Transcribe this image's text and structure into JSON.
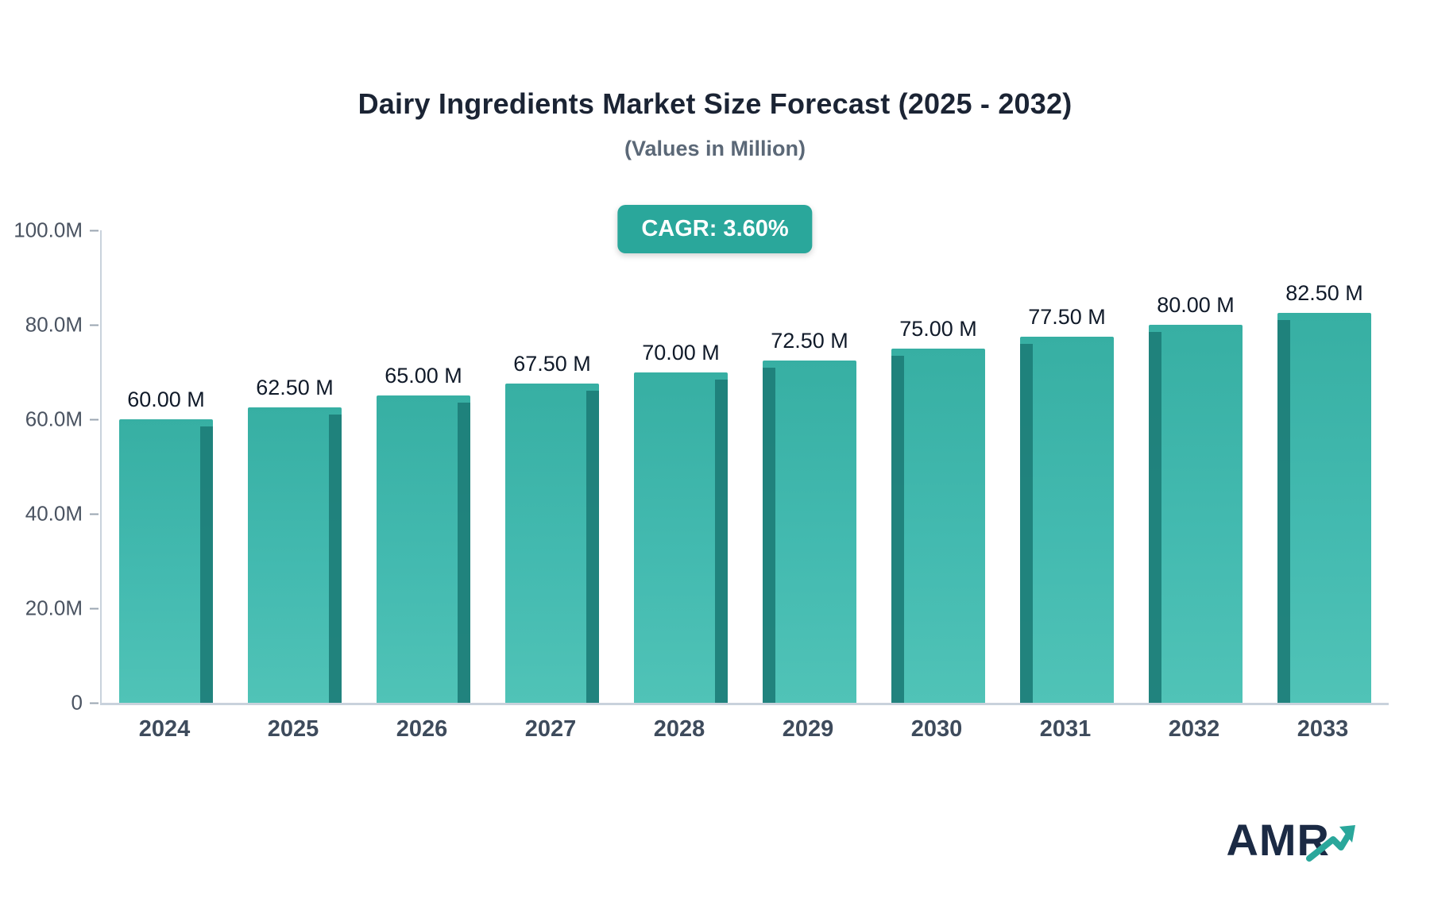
{
  "title": "Dairy Ingredients Market Size Forecast (2025 - 2032)",
  "subtitle": "(Values in Million)",
  "badge": {
    "label": "CAGR: 3.60%"
  },
  "logo": {
    "text": "AMR"
  },
  "colors": {
    "accent_teal": "#2aa79b",
    "bar_top": "#37afa3",
    "bar_bottom": "#50c3b7",
    "bar_side_shade": "#1d7e78",
    "title_text": "#1b2434",
    "axis_text": "#4a5361",
    "logo_navy": "#1b2a44"
  },
  "chart_data": {
    "type": "bar",
    "title": "Dairy Ingredients Market Size Forecast (2025 - 2032)",
    "subtitle": "(Values in Million)",
    "unit": "Million",
    "xlabel": "",
    "ylabel": "",
    "ylim": [
      0,
      100
    ],
    "grid": false,
    "legend": "none",
    "categories": [
      "2024",
      "2025",
      "2026",
      "2027",
      "2028",
      "2029",
      "2030",
      "2031",
      "2032",
      "2033"
    ],
    "values": [
      60,
      62.5,
      65,
      67.5,
      70,
      72.5,
      75,
      77.5,
      80,
      82.5
    ],
    "value_labels": [
      "60.00 M",
      "62.50 M",
      "65.00 M",
      "67.50 M",
      "70.00 M",
      "72.50 M",
      "75.00 M",
      "77.50 M",
      "80.00 M",
      "82.50 M"
    ],
    "yticks": [
      {
        "value": 0,
        "label": "0"
      },
      {
        "value": 20,
        "label": "20.0M"
      },
      {
        "value": 40,
        "label": "40.0M"
      },
      {
        "value": 60,
        "label": "60.0M"
      },
      {
        "value": 80,
        "label": "80.0M"
      },
      {
        "value": 100,
        "label": "100.0M"
      }
    ],
    "annotations": [
      "CAGR: 3.60%"
    ]
  }
}
